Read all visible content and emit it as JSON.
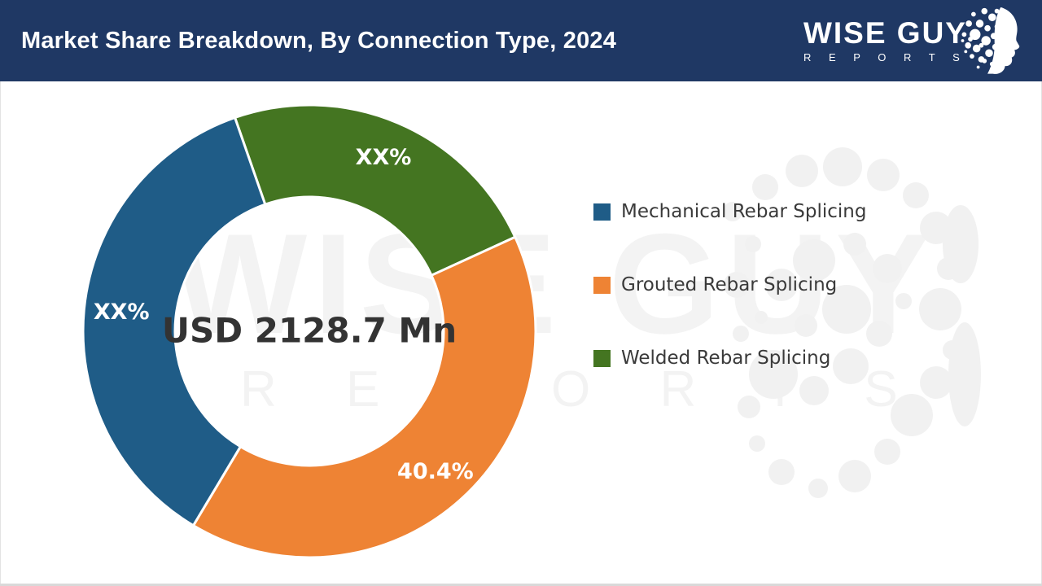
{
  "header": {
    "title": "Market Share Breakdown, By Connection Type, 2024",
    "background_color": "#1F3864",
    "logo": {
      "line1": "WISE GUY",
      "line2": "R E P O R T S"
    }
  },
  "watermark": {
    "line1": "WISE GUY",
    "line2": "R E P O R T S"
  },
  "chart_data": {
    "type": "pie",
    "subtype": "donut",
    "title": "Market Share Breakdown, By Connection Type, 2024",
    "center_label": "USD 2128.7 Mn",
    "legend_position": "right",
    "direction": "clockwise",
    "start_angle_deg": 109.2,
    "slices": [
      {
        "name": "Welded Rebar Splicing",
        "data_label": "XX%",
        "value_pct": 23.5,
        "value_visible": false,
        "value_estimated_from_arc": true,
        "color": "#447521"
      },
      {
        "name": "Grouted Rebar Splicing",
        "data_label": "40.4%",
        "value_pct": 40.4,
        "value_visible": true,
        "value_estimated_from_arc": false,
        "color": "#EE8334"
      },
      {
        "name": "Mechanical Rebar Splicing",
        "data_label": "XX%",
        "value_pct": 36.1,
        "value_visible": false,
        "value_estimated_from_arc": true,
        "color": "#1F5C87"
      }
    ],
    "legend": [
      {
        "label": "Mechanical Rebar Splicing",
        "color": "#1F5C87"
      },
      {
        "label": "Grouted Rebar Splicing",
        "color": "#EE8334"
      },
      {
        "label": "Welded Rebar Splicing",
        "color": "#447521"
      }
    ]
  },
  "colors": {
    "header_bg": "#1F3864",
    "center_text": "#333333",
    "legend_text": "#3A3A3A",
    "slice_label_text": "#FFFFFF",
    "watermark": "#F3F3F3",
    "bottom_border": "#D9D9D9"
  }
}
